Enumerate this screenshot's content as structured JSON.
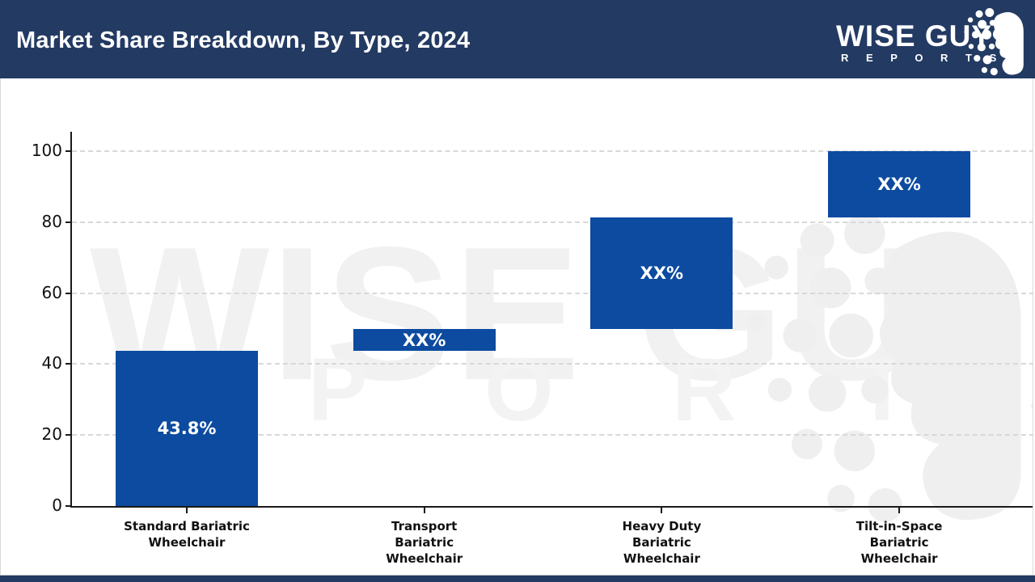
{
  "header": {
    "title": "Market Share Breakdown, By Type, 2024",
    "bg_color": "#233a63",
    "logo": {
      "line1": "WISE GUY",
      "line2": "R E P O R T S"
    }
  },
  "watermark": {
    "line1": "WISE GU",
    "line2": "P O R T S"
  },
  "chart_data": {
    "type": "bar",
    "subtype": "waterfall",
    "title": "Market Share Breakdown, By Type, 2024",
    "categories": [
      [
        "Standard Bariatric",
        "Wheelchair"
      ],
      [
        "Transport",
        "Bariatric",
        "Wheelchair"
      ],
      [
        "Heavy Duty",
        "Bariatric",
        "Wheelchair"
      ],
      [
        "Tilt-in-Space",
        "Bariatric",
        "Wheelchair"
      ]
    ],
    "segments": [
      {
        "start": 0,
        "end": 43.8,
        "label": "43.8%"
      },
      {
        "start": 43.8,
        "end": 49.8,
        "label": "XX%"
      },
      {
        "start": 49.8,
        "end": 81.3,
        "label": "XX%"
      },
      {
        "start": 81.3,
        "end": 100,
        "label": "XX%"
      }
    ],
    "ylim": [
      0,
      100
    ],
    "yticks": [
      0,
      20,
      40,
      60,
      80,
      100
    ],
    "grid": "dashed-horizontal",
    "legend": "none",
    "bar_color": "#0c4ba0",
    "bar_label_color": "#ffffff"
  }
}
